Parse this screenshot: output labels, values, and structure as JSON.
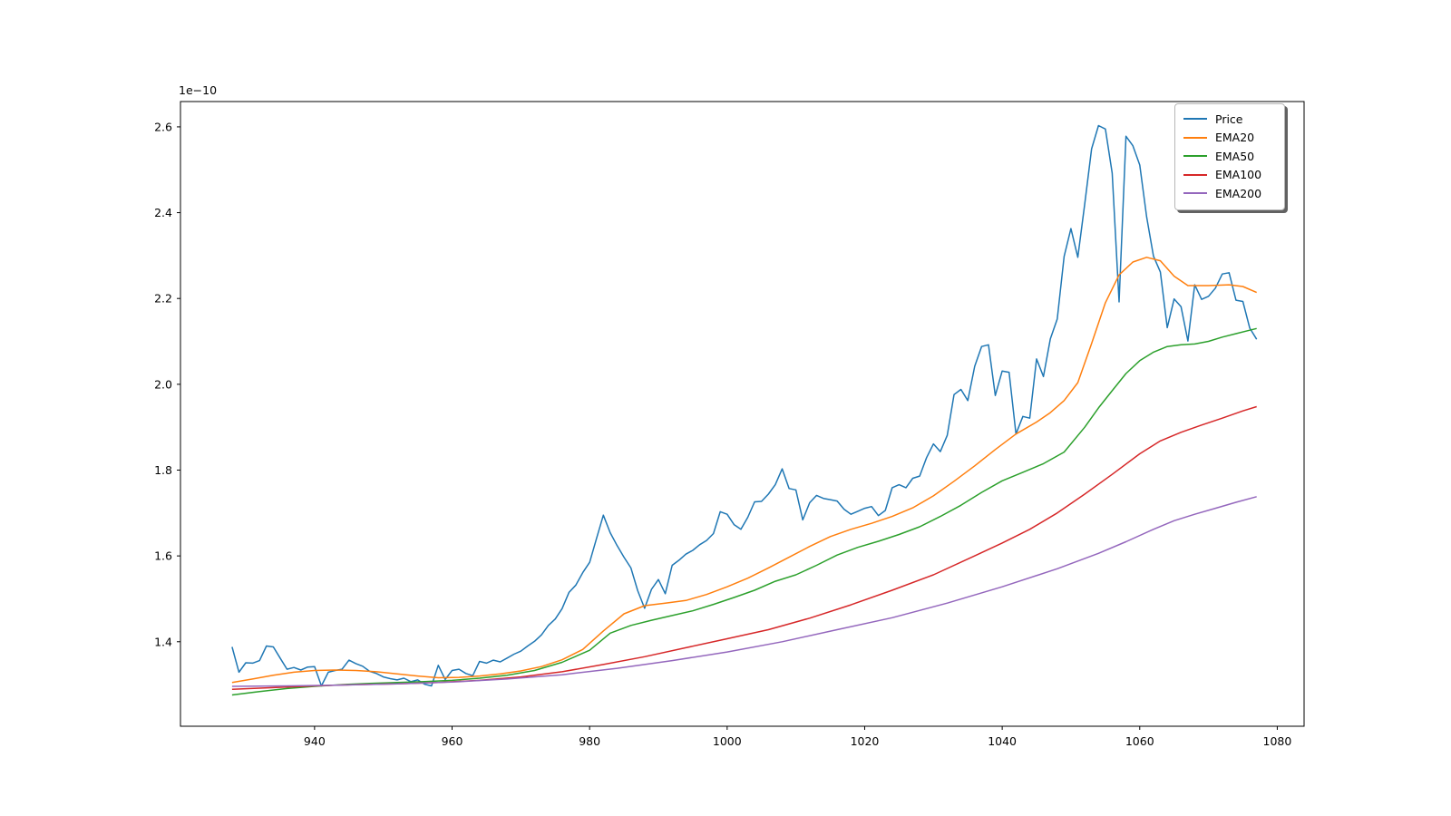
{
  "chart_data": {
    "type": "line",
    "title": "",
    "xlabel": "",
    "ylabel": "",
    "y_offset_text": "1e−10",
    "grid": false,
    "legend_position": "upper right",
    "xlim": [
      920.5,
      1083.9
    ],
    "ylim": [
      1.203,
      2.659
    ],
    "x_ticks": [
      940,
      960,
      980,
      1000,
      1020,
      1040,
      1060,
      1080
    ],
    "y_ticks": [
      1.4,
      1.6,
      1.8,
      2.0,
      2.2,
      2.4,
      2.6
    ],
    "series": [
      {
        "name": "Price",
        "color": "#1f77b4",
        "x0": 928,
        "dx": 1,
        "y": [
          1.388,
          1.329,
          1.351,
          1.35,
          1.356,
          1.39,
          1.388,
          1.362,
          1.336,
          1.34,
          1.334,
          1.341,
          1.342,
          1.297,
          1.329,
          1.333,
          1.336,
          1.357,
          1.349,
          1.343,
          1.331,
          1.326,
          1.318,
          1.314,
          1.311,
          1.315,
          1.307,
          1.311,
          1.301,
          1.297,
          1.345,
          1.312,
          1.333,
          1.336,
          1.326,
          1.321,
          1.354,
          1.35,
          1.357,
          1.353,
          1.362,
          1.371,
          1.378,
          1.39,
          1.401,
          1.416,
          1.438,
          1.453,
          1.477,
          1.515,
          1.532,
          1.561,
          1.585,
          1.64,
          1.695,
          1.654,
          1.624,
          1.597,
          1.572,
          1.519,
          1.478,
          1.522,
          1.545,
          1.512,
          1.578,
          1.59,
          1.604,
          1.613,
          1.626,
          1.636,
          1.652,
          1.703,
          1.697,
          1.673,
          1.662,
          1.69,
          1.726,
          1.727,
          1.744,
          1.766,
          1.803,
          1.757,
          1.754,
          1.684,
          1.724,
          1.741,
          1.734,
          1.731,
          1.728,
          1.709,
          1.697,
          1.704,
          1.711,
          1.715,
          1.694,
          1.706,
          1.759,
          1.766,
          1.759,
          1.781,
          1.786,
          1.829,
          1.861,
          1.843,
          1.881,
          1.976,
          1.988,
          1.962,
          2.042,
          2.088,
          2.092,
          1.974,
          2.031,
          2.028,
          1.884,
          1.925,
          1.921,
          2.059,
          2.018,
          2.106,
          2.152,
          2.298,
          2.363,
          2.296,
          2.42,
          2.549,
          2.603,
          2.595,
          2.492,
          2.192,
          2.578,
          2.556,
          2.511,
          2.39,
          2.299,
          2.262,
          2.132,
          2.199,
          2.181,
          2.101,
          2.232,
          2.198,
          2.205,
          2.224,
          2.257,
          2.26,
          2.196,
          2.193,
          2.131,
          2.105
        ]
      },
      {
        "name": "EMA20",
        "color": "#ff7f0e",
        "points": [
          [
            928,
            1.305
          ],
          [
            931,
            1.313
          ],
          [
            934,
            1.322
          ],
          [
            937,
            1.329
          ],
          [
            940,
            1.333
          ],
          [
            943,
            1.334
          ],
          [
            946,
            1.333
          ],
          [
            949,
            1.33
          ],
          [
            952,
            1.325
          ],
          [
            955,
            1.32
          ],
          [
            958,
            1.316
          ],
          [
            961,
            1.317
          ],
          [
            964,
            1.32
          ],
          [
            967,
            1.325
          ],
          [
            970,
            1.332
          ],
          [
            973,
            1.342
          ],
          [
            976,
            1.358
          ],
          [
            979,
            1.382
          ],
          [
            982,
            1.425
          ],
          [
            985,
            1.465
          ],
          [
            988,
            1.484
          ],
          [
            991,
            1.49
          ],
          [
            994,
            1.496
          ],
          [
            997,
            1.51
          ],
          [
            1000,
            1.528
          ],
          [
            1003,
            1.548
          ],
          [
            1006,
            1.572
          ],
          [
            1009,
            1.597
          ],
          [
            1012,
            1.622
          ],
          [
            1015,
            1.645
          ],
          [
            1018,
            1.662
          ],
          [
            1021,
            1.676
          ],
          [
            1024,
            1.692
          ],
          [
            1027,
            1.712
          ],
          [
            1030,
            1.74
          ],
          [
            1033,
            1.774
          ],
          [
            1036,
            1.81
          ],
          [
            1039,
            1.848
          ],
          [
            1042,
            1.884
          ],
          [
            1045,
            1.912
          ],
          [
            1047,
            1.934
          ],
          [
            1049,
            1.962
          ],
          [
            1051,
            2.004
          ],
          [
            1053,
            2.095
          ],
          [
            1055,
            2.19
          ],
          [
            1057,
            2.255
          ],
          [
            1059,
            2.285
          ],
          [
            1061,
            2.296
          ],
          [
            1063,
            2.288
          ],
          [
            1065,
            2.252
          ],
          [
            1067,
            2.23
          ],
          [
            1070,
            2.23
          ],
          [
            1073,
            2.232
          ],
          [
            1075,
            2.228
          ],
          [
            1077,
            2.214
          ]
        ]
      },
      {
        "name": "EMA50",
        "color": "#2ca02c",
        "points": [
          [
            928,
            1.276
          ],
          [
            932,
            1.284
          ],
          [
            936,
            1.291
          ],
          [
            940,
            1.296
          ],
          [
            944,
            1.3
          ],
          [
            948,
            1.303
          ],
          [
            952,
            1.305
          ],
          [
            956,
            1.307
          ],
          [
            960,
            1.31
          ],
          [
            964,
            1.315
          ],
          [
            968,
            1.322
          ],
          [
            972,
            1.333
          ],
          [
            976,
            1.352
          ],
          [
            980,
            1.38
          ],
          [
            983,
            1.42
          ],
          [
            986,
            1.438
          ],
          [
            989,
            1.45
          ],
          [
            992,
            1.461
          ],
          [
            995,
            1.472
          ],
          [
            998,
            1.487
          ],
          [
            1001,
            1.503
          ],
          [
            1004,
            1.52
          ],
          [
            1007,
            1.541
          ],
          [
            1010,
            1.556
          ],
          [
            1013,
            1.578
          ],
          [
            1016,
            1.602
          ],
          [
            1019,
            1.62
          ],
          [
            1022,
            1.634
          ],
          [
            1025,
            1.65
          ],
          [
            1028,
            1.668
          ],
          [
            1031,
            1.692
          ],
          [
            1034,
            1.718
          ],
          [
            1037,
            1.748
          ],
          [
            1040,
            1.775
          ],
          [
            1043,
            1.795
          ],
          [
            1046,
            1.815
          ],
          [
            1049,
            1.842
          ],
          [
            1052,
            1.9
          ],
          [
            1054,
            1.945
          ],
          [
            1056,
            1.985
          ],
          [
            1058,
            2.025
          ],
          [
            1060,
            2.055
          ],
          [
            1062,
            2.075
          ],
          [
            1064,
            2.088
          ],
          [
            1066,
            2.092
          ],
          [
            1068,
            2.094
          ],
          [
            1070,
            2.1
          ],
          [
            1072,
            2.11
          ],
          [
            1074,
            2.118
          ],
          [
            1076,
            2.126
          ],
          [
            1077,
            2.13
          ]
        ]
      },
      {
        "name": "EMA100",
        "color": "#d62728",
        "points": [
          [
            928,
            1.289
          ],
          [
            934,
            1.293
          ],
          [
            940,
            1.297
          ],
          [
            946,
            1.3
          ],
          [
            952,
            1.302
          ],
          [
            958,
            1.305
          ],
          [
            964,
            1.31
          ],
          [
            970,
            1.318
          ],
          [
            976,
            1.33
          ],
          [
            982,
            1.347
          ],
          [
            988,
            1.365
          ],
          [
            994,
            1.386
          ],
          [
            1000,
            1.407
          ],
          [
            1006,
            1.428
          ],
          [
            1012,
            1.455
          ],
          [
            1018,
            1.486
          ],
          [
            1024,
            1.52
          ],
          [
            1030,
            1.556
          ],
          [
            1036,
            1.6
          ],
          [
            1040,
            1.63
          ],
          [
            1044,
            1.662
          ],
          [
            1048,
            1.7
          ],
          [
            1052,
            1.744
          ],
          [
            1056,
            1.79
          ],
          [
            1060,
            1.838
          ],
          [
            1063,
            1.868
          ],
          [
            1066,
            1.888
          ],
          [
            1069,
            1.905
          ],
          [
            1072,
            1.921
          ],
          [
            1075,
            1.938
          ],
          [
            1077,
            1.948
          ]
        ]
      },
      {
        "name": "EMA200",
        "color": "#9467bd",
        "points": [
          [
            928,
            1.296
          ],
          [
            936,
            1.297
          ],
          [
            944,
            1.299
          ],
          [
            952,
            1.302
          ],
          [
            960,
            1.306
          ],
          [
            968,
            1.313
          ],
          [
            976,
            1.323
          ],
          [
            984,
            1.338
          ],
          [
            992,
            1.356
          ],
          [
            1000,
            1.376
          ],
          [
            1008,
            1.4
          ],
          [
            1016,
            1.428
          ],
          [
            1024,
            1.456
          ],
          [
            1032,
            1.49
          ],
          [
            1040,
            1.528
          ],
          [
            1048,
            1.57
          ],
          [
            1054,
            1.606
          ],
          [
            1058,
            1.633
          ],
          [
            1062,
            1.662
          ],
          [
            1065,
            1.682
          ],
          [
            1068,
            1.697
          ],
          [
            1071,
            1.711
          ],
          [
            1074,
            1.725
          ],
          [
            1077,
            1.738
          ]
        ]
      }
    ]
  }
}
